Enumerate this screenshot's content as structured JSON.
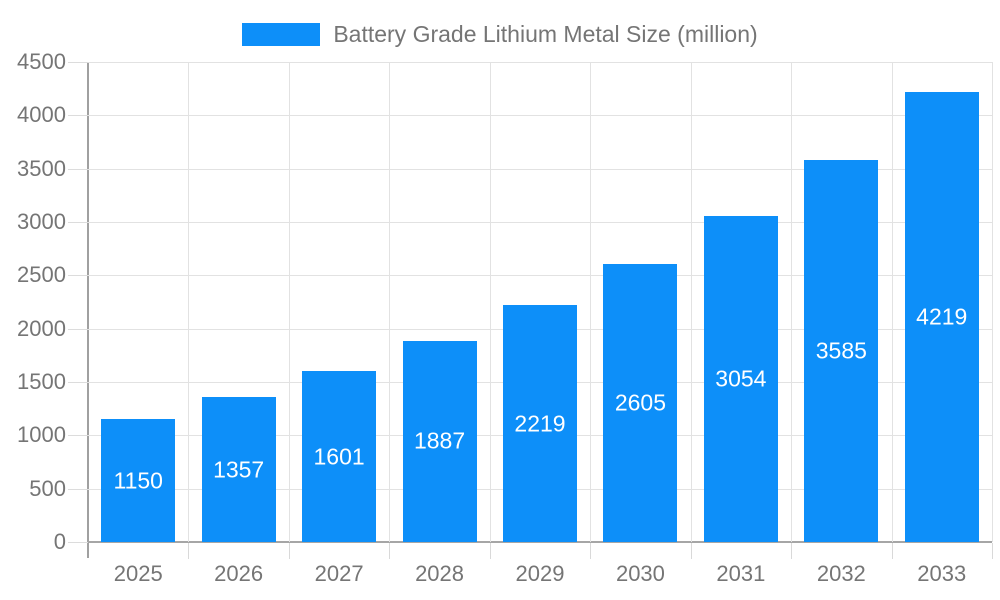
{
  "legend": {
    "label": "Battery Grade Lithium Metal Size (million)"
  },
  "chart_data": {
    "type": "bar",
    "title": "Battery Grade Lithium Metal Size (million)",
    "categories": [
      "2025",
      "2026",
      "2027",
      "2028",
      "2029",
      "2030",
      "2031",
      "2032",
      "2033"
    ],
    "values": [
      1150,
      1357,
      1601,
      1887,
      2219,
      2605,
      3054,
      3585,
      4219
    ],
    "xlabel": "",
    "ylabel": "",
    "ylim": [
      0,
      4500
    ],
    "yticks": [
      0,
      500,
      1000,
      1500,
      2000,
      2500,
      3000,
      3500,
      4000,
      4500
    ],
    "grid": true,
    "legend_position": "top",
    "colors": {
      "bar": "#0d8ff9",
      "bar_value_text": "#ffffff",
      "axis_text": "#757575",
      "gridline": "#e2e2e2",
      "axis_line": "#a0a0a0",
      "tick": "#d9d9d9"
    }
  }
}
